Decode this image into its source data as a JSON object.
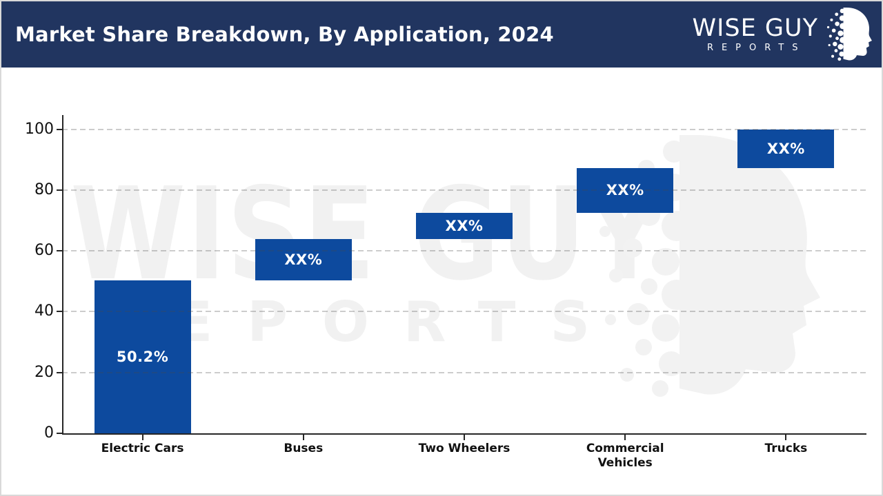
{
  "header": {
    "title": "Market Share Breakdown, By Application, 2024",
    "logo": {
      "wordmark": "WISE GUY",
      "subtitle": "REPORTS"
    }
  },
  "watermark": {
    "wordmark": "WISE GUY",
    "subtitle": "REPORTS"
  },
  "chart_data": {
    "type": "bar",
    "variant": "waterfall",
    "title": "Market Share Breakdown, By Application, 2024",
    "categories": [
      "Electric Cars",
      "Buses",
      "Two Wheelers",
      "Commercial Vehicles",
      "Trucks"
    ],
    "series": [
      {
        "name": "Market share (%)",
        "segments": [
          {
            "category": "Electric Cars",
            "start": 0,
            "end": 50.2,
            "label": "50.2%"
          },
          {
            "category": "Buses",
            "start": 50.2,
            "end": 63.8,
            "label": "XX%"
          },
          {
            "category": "Two Wheelers",
            "start": 63.8,
            "end": 72.5,
            "label": "XX%"
          },
          {
            "category": "Commercial Vehicles",
            "start": 72.5,
            "end": 87.3,
            "label": "XX%"
          },
          {
            "category": "Trucks",
            "start": 87.3,
            "end": 100,
            "label": "XX%"
          }
        ]
      }
    ],
    "ylim": [
      0,
      100
    ],
    "yticks": [
      0,
      20,
      40,
      60,
      80,
      100
    ],
    "xlabel": "",
    "ylabel": "",
    "grid": "horizontal-dashed",
    "legend": "none",
    "bar_color": "#0d4a9e",
    "bar_label_color": "#ffffff"
  },
  "colors": {
    "header_bg": "#213560",
    "bar": "#0d4a9e",
    "axis": "#262626",
    "grid_dash": "#d9d9d9",
    "watermark": "#f1f1f1",
    "page_border": "#d9d9d9"
  }
}
